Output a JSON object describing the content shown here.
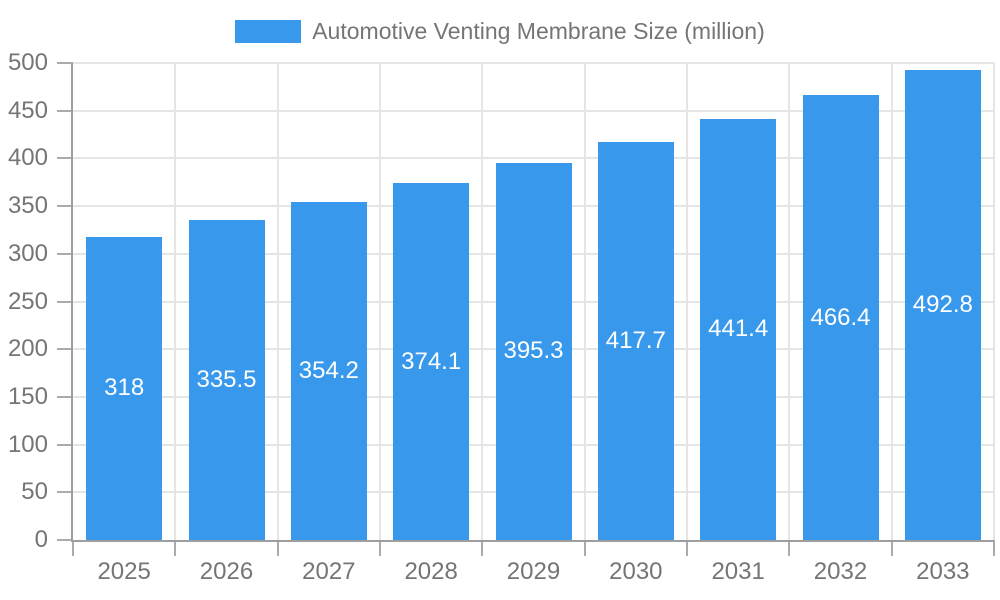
{
  "chart_data": {
    "type": "bar",
    "title": "Automotive Venting Membrane Size (million)",
    "categories": [
      "2025",
      "2026",
      "2027",
      "2028",
      "2029",
      "2030",
      "2031",
      "2032",
      "2033"
    ],
    "series": [
      {
        "name": "Automotive Venting Membrane Size (million)",
        "values": [
          318,
          335.5,
          354.2,
          374.1,
          395.3,
          417.7,
          441.4,
          466.4,
          492.8
        ]
      }
    ],
    "value_labels": [
      "318",
      "335.5",
      "354.2",
      "374.1",
      "395.3",
      "417.7",
      "441.4",
      "466.4",
      "492.8"
    ],
    "xlabel": "",
    "ylabel": "",
    "ylim": [
      0,
      500
    ],
    "y_ticks": [
      0,
      50,
      100,
      150,
      200,
      250,
      300,
      350,
      400,
      450,
      500
    ],
    "grid": "on",
    "legend_position": "top-center",
    "colors": {
      "bar": "#3899EC",
      "axis_line": "#9e9e9e",
      "tick_mark": "#ababab",
      "gridline": "#e5e5e5",
      "axis_text": "#757575",
      "bar_label_text": "#ffffff",
      "background": "#ffffff"
    }
  }
}
